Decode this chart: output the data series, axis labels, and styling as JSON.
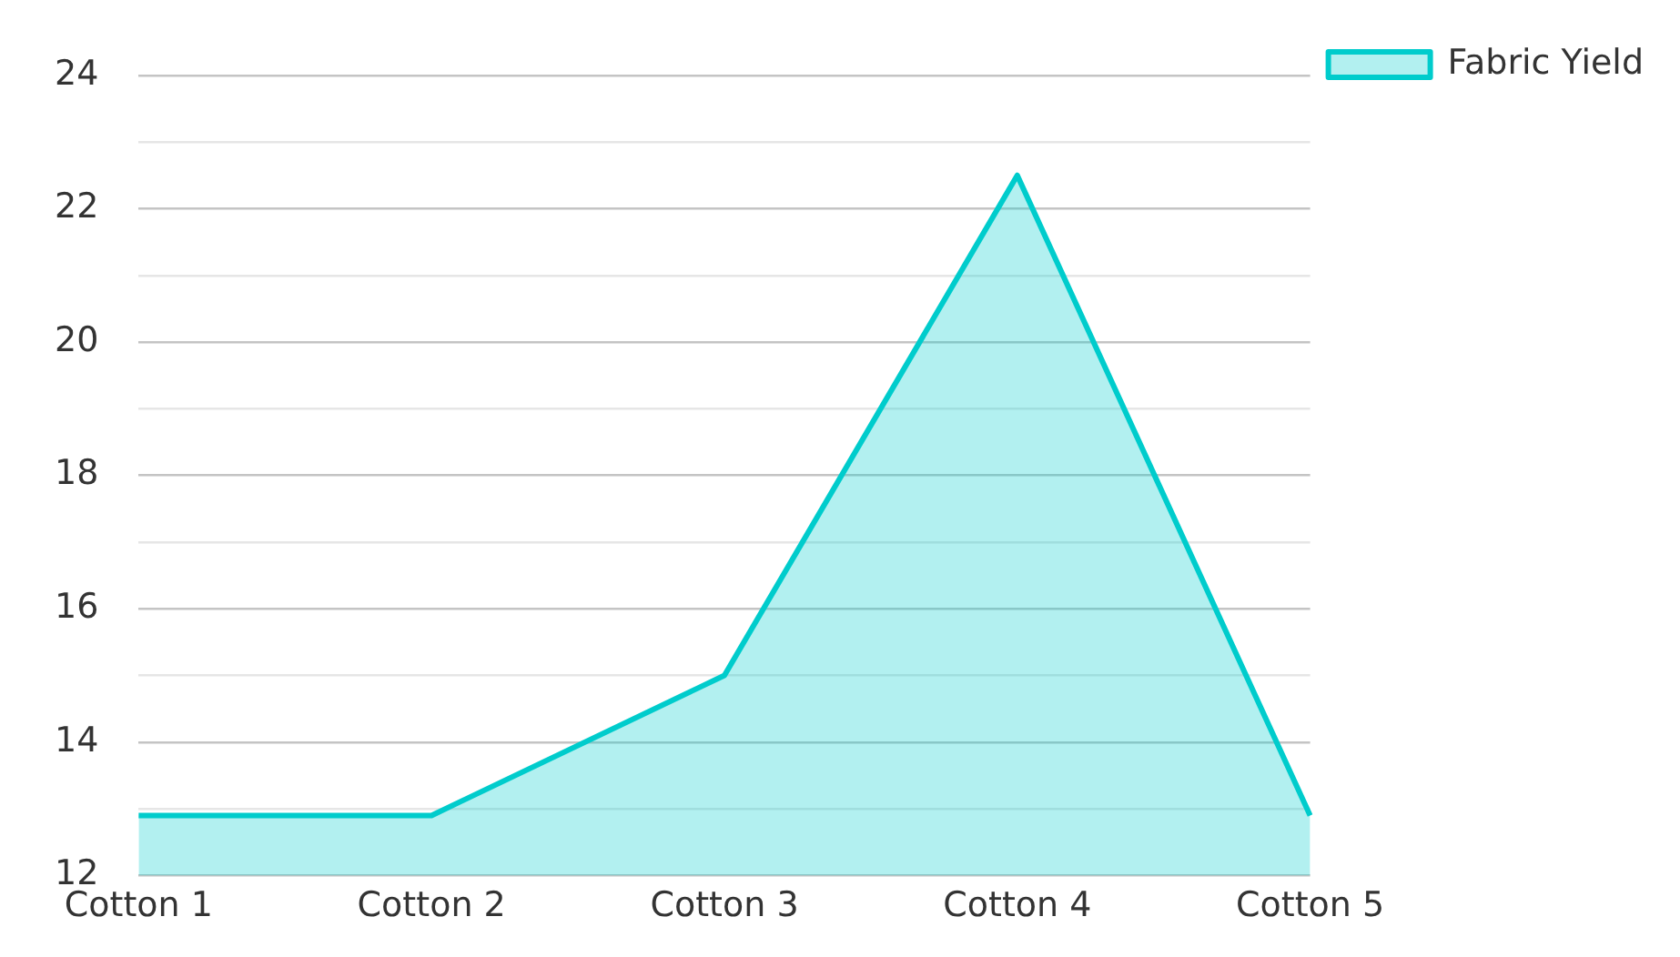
{
  "chart_data": {
    "type": "area",
    "categories": [
      "Cotton 1",
      "Cotton 2",
      "Cotton 3",
      "Cotton 4",
      "Cotton 5"
    ],
    "series": [
      {
        "name": "Fabric Yield",
        "color": "#00cccc",
        "values": [
          12.9,
          12.9,
          15,
          22.5,
          12.9
        ]
      }
    ],
    "ylim": [
      12,
      24
    ],
    "yticks": [
      12,
      {
        "value": 13,
        "label": null
      },
      14,
      {
        "value": 15,
        "label": null
      },
      16,
      {
        "value": 17,
        "label": null
      },
      18,
      {
        "value": 19,
        "label": null
      },
      20,
      {
        "value": 21,
        "label": null
      },
      22,
      {
        "value": 23,
        "label": null
      },
      24
    ],
    "grid": "y",
    "legend": "top right",
    "marker": "none",
    "line_style": "solid"
  }
}
